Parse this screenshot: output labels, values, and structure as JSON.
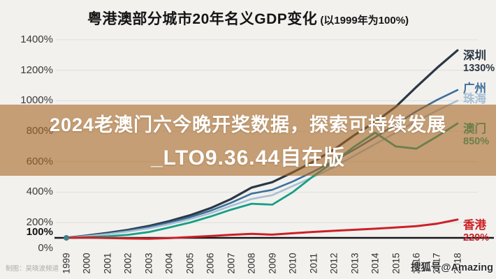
{
  "title": {
    "main": "粤港澳部分城市20年名义GDP变化",
    "sub": "(以1999年为100%)"
  },
  "chart_data": {
    "type": "line",
    "x": [
      1999,
      2000,
      2001,
      2002,
      2003,
      2004,
      2005,
      2006,
      2007,
      2008,
      2009,
      2010,
      2011,
      2012,
      2013,
      2014,
      2015,
      2016,
      2017,
      2018
    ],
    "xlabel": "",
    "ylabel": "",
    "ylim": [
      0,
      1400
    ],
    "baseline_value": 100,
    "grid": "horizontal",
    "legend_position": "right-of-line-ends",
    "y_ticks": [
      {
        "value": 1400,
        "label": "1400%"
      },
      {
        "value": 1200,
        "label": "1200%"
      },
      {
        "value": 1000,
        "label": "1000%"
      },
      {
        "value": 800,
        "label": "800%"
      },
      {
        "value": 600,
        "label": "600%"
      },
      {
        "value": 400,
        "label": "400%"
      },
      {
        "value": 200,
        "label": "200%"
      },
      {
        "value": 100,
        "label": "100%"
      },
      {
        "value": 0,
        "label": "0%"
      }
    ],
    "series": [
      {
        "name": "深圳",
        "end_label": "1330%",
        "color": "#2b3744",
        "values": [
          100,
          115,
          132,
          152,
          178,
          210,
          248,
          295,
          355,
          430,
          465,
          530,
          600,
          680,
          775,
          860,
          960,
          1090,
          1215,
          1330
        ]
      },
      {
        "name": "广州",
        "end_label": "",
        "color": "#3c6f9c",
        "values": [
          100,
          113,
          128,
          147,
          170,
          200,
          235,
          278,
          330,
          390,
          415,
          470,
          535,
          605,
          680,
          760,
          845,
          930,
          1005,
          1070
        ]
      },
      {
        "name": "珠海",
        "end_label": "",
        "color": "#a8c0d4",
        "values": [
          100,
          111,
          124,
          141,
          162,
          190,
          222,
          262,
          310,
          355,
          380,
          440,
          500,
          565,
          640,
          715,
          790,
          865,
          935,
          1000
        ]
      },
      {
        "name": "澳门",
        "end_label": "850%",
        "color": "#16a085",
        "values": [
          100,
          104,
          110,
          120,
          138,
          168,
          200,
          240,
          285,
          324,
          318,
          400,
          505,
          600,
          700,
          790,
          700,
          685,
          765,
          850
        ]
      },
      {
        "name": "香港",
        "end_label": "220%",
        "color": "#cc2027",
        "values": [
          100,
          102,
          99,
          96,
          94,
          98,
          105,
          112,
          120,
          126,
          121,
          130,
          139,
          146,
          153,
          160,
          168,
          177,
          193,
          220
        ]
      }
    ]
  },
  "overlay": {
    "line1": "2024老澳门六今晚开奖数据，探索可持续发展",
    "line2": "_LTO9.36.44自在版"
  },
  "footer": {
    "credit": "制图：吴晓波频道",
    "watermark": "搜狐号@Amazing"
  }
}
